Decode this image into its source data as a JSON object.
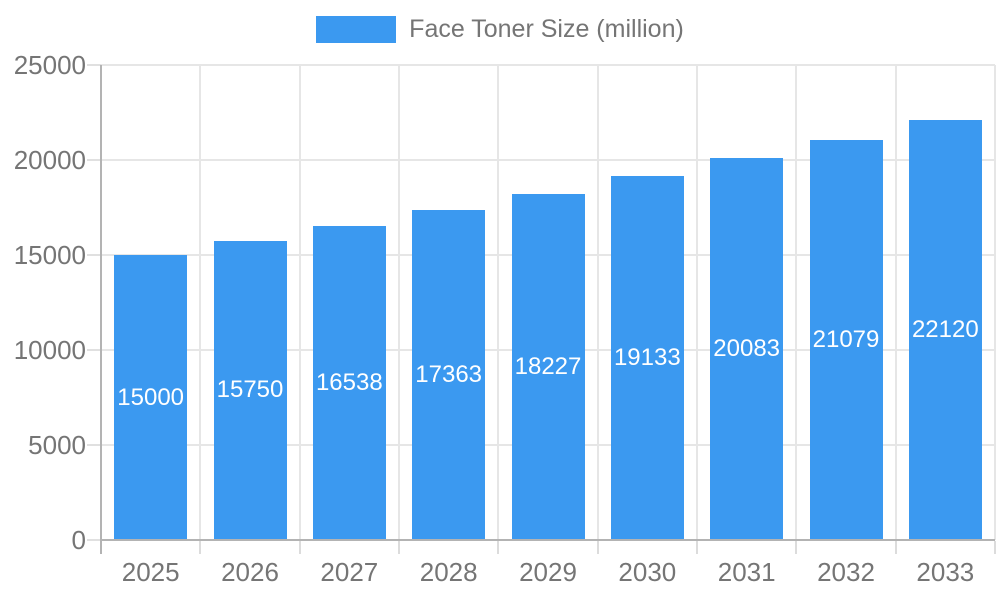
{
  "chart_data": {
    "type": "bar",
    "title": "Face Toner Size (million)",
    "legend": {
      "label": "Face Toner Size (million)",
      "position": "top"
    },
    "categories": [
      "2025",
      "2026",
      "2027",
      "2028",
      "2029",
      "2030",
      "2031",
      "2032",
      "2033"
    ],
    "values": [
      15000,
      15750,
      16538,
      17363,
      18227,
      19133,
      20083,
      21079,
      22120
    ],
    "xlabel": "",
    "ylabel": "",
    "ylim": [
      0,
      25000
    ],
    "yticks": [
      0,
      5000,
      10000,
      15000,
      20000,
      25000
    ],
    "grid": true,
    "colors": {
      "bar": "#3b99f0",
      "data_label": "#ffffff",
      "axis_text": "#757575",
      "grid_line": "#e6e6e6",
      "axis_line": "#b3b3b3"
    }
  }
}
